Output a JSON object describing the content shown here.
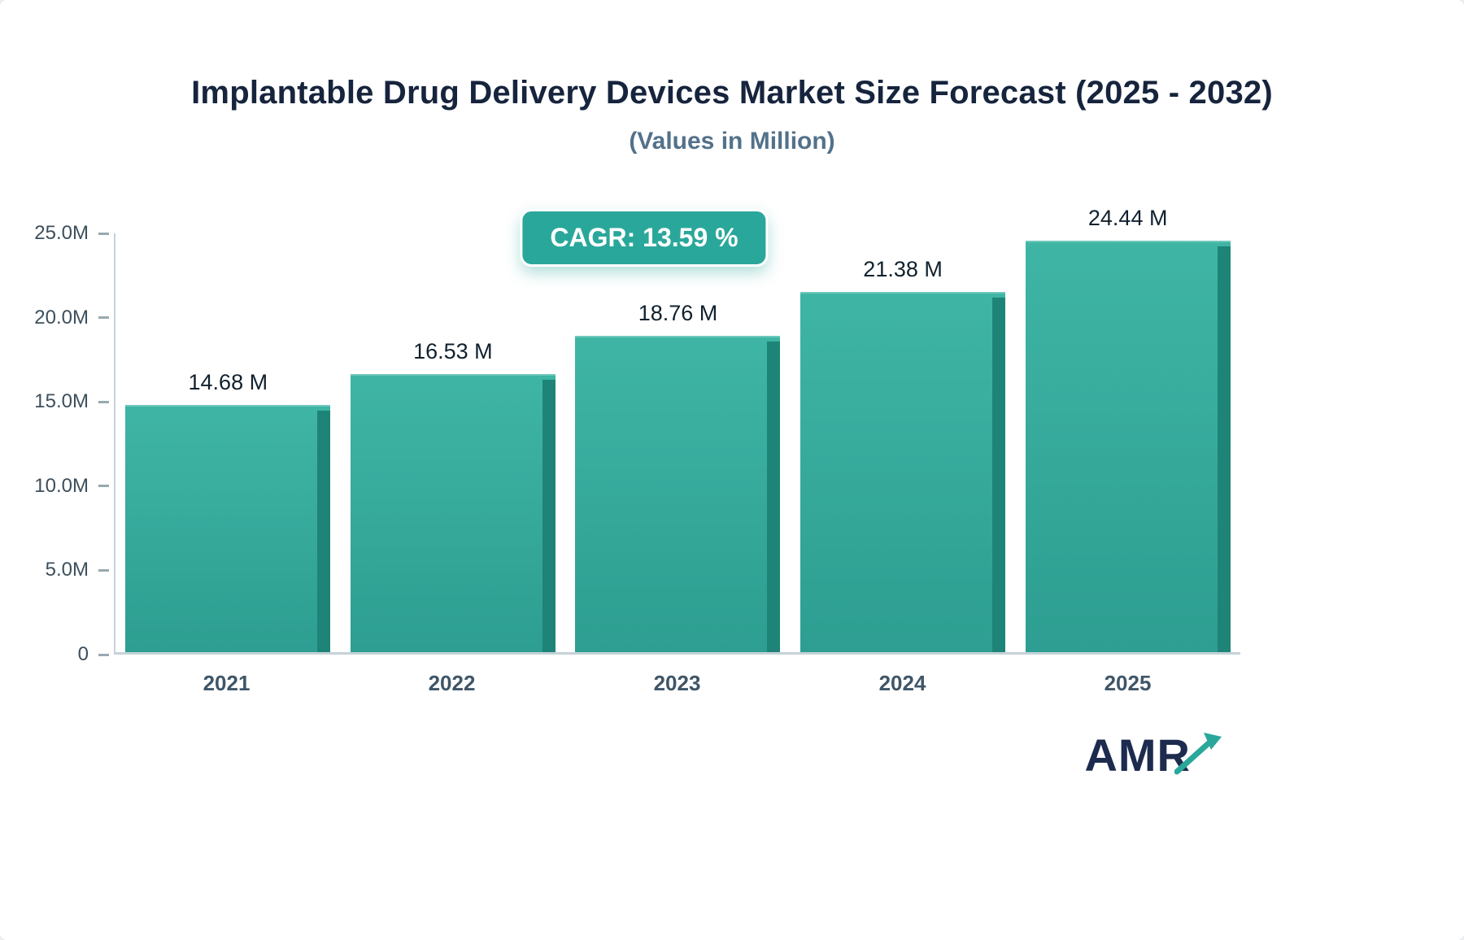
{
  "header": {
    "title": "Implantable Drug Delivery Devices Market Size Forecast (2025 - 2032)",
    "subtitle": "(Values in Million)"
  },
  "badge": {
    "text": "CAGR: 13.59 %"
  },
  "chart_data": {
    "type": "bar",
    "title": "Implantable Drug Delivery Devices Market Size Forecast (2025 - 2032)",
    "subtitle": "(Values in Million)",
    "cagr_percent": 13.59,
    "categories": [
      "2021",
      "2022",
      "2023",
      "2024",
      "2025"
    ],
    "values": [
      14.68,
      16.53,
      18.76,
      21.38,
      24.44
    ],
    "value_labels": [
      "14.68 M",
      "16.53 M",
      "18.76 M",
      "21.38 M",
      "24.44 M"
    ],
    "unit": "Million",
    "xlabel": "",
    "ylabel": "",
    "ylim": [
      0,
      25
    ],
    "y_ticks": [
      {
        "value": 0,
        "label": "0"
      },
      {
        "value": 5,
        "label": "5.0M"
      },
      {
        "value": 10,
        "label": "10.0M"
      },
      {
        "value": 15,
        "label": "15.0M"
      },
      {
        "value": 20,
        "label": "20.0M"
      },
      {
        "value": 25,
        "label": "25.0M"
      }
    ],
    "grid": false,
    "legend": false,
    "bar_color_top": "#3fb5a5",
    "bar_color_bottom": "#2d9e91",
    "bar_side_color": "#1e8478"
  },
  "logo": {
    "text": "AMR",
    "arrow_color": "#2aa79b"
  }
}
